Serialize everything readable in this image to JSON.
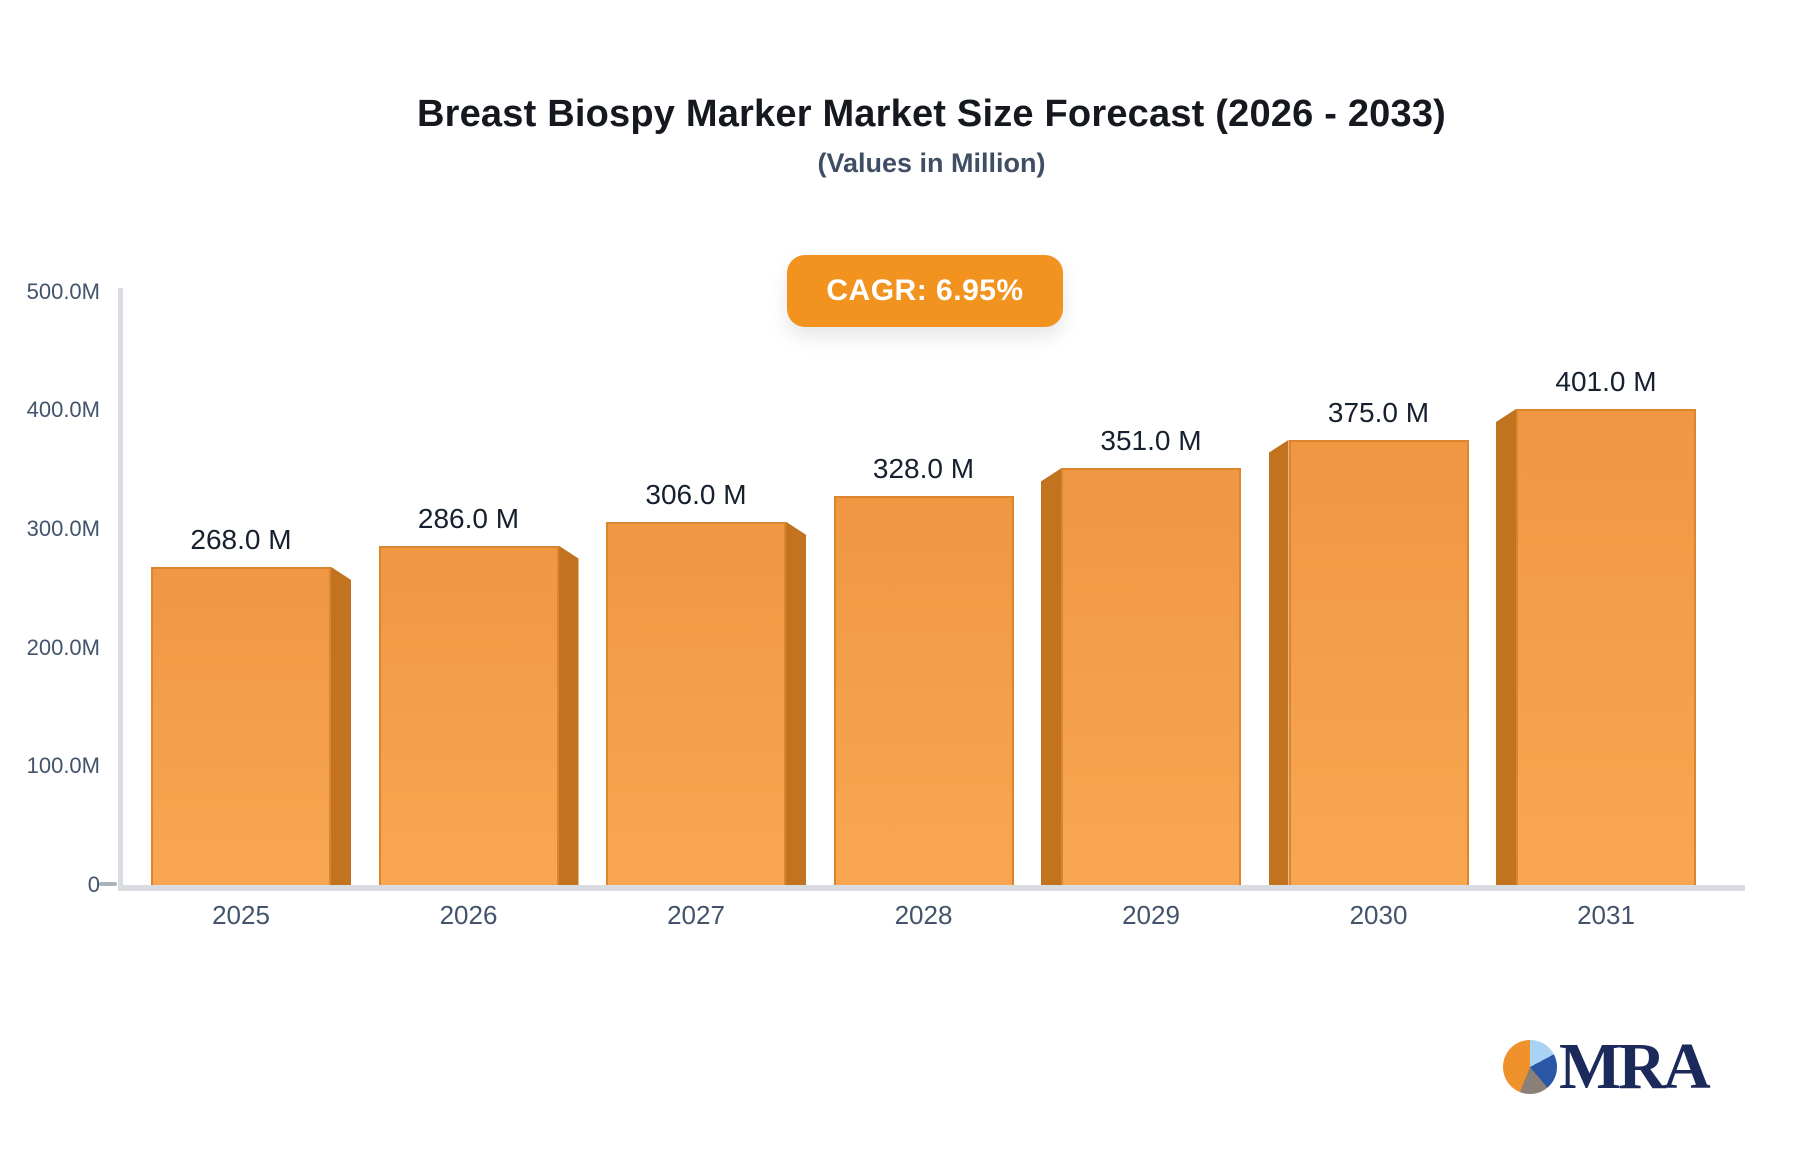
{
  "header": {
    "title": "Breast Biospy Marker Market Size Forecast (2026 - 2033)",
    "subtitle": "(Values in Million)",
    "cagr_badge": "CAGR: 6.95%"
  },
  "chart_data": {
    "type": "bar",
    "title": "Breast Biospy Marker Market Size Forecast (2026 - 2033)",
    "subtitle": "(Values in Million)",
    "categories": [
      "2025",
      "2026",
      "2027",
      "2028",
      "2029",
      "2030",
      "2031"
    ],
    "values": [
      268,
      286,
      306,
      328,
      351,
      375,
      401
    ],
    "bar_labels": [
      "268.0 M",
      "286.0 M",
      "306.0 M",
      "328.0 M",
      "351.0 M",
      "375.0 M",
      "401.0 M"
    ],
    "y_ticks": [
      {
        "value": 500,
        "label": "500.0M"
      },
      {
        "value": 400,
        "label": "400.0M"
      },
      {
        "value": 300,
        "label": "300.0M"
      },
      {
        "value": 200,
        "label": "200.0M"
      },
      {
        "value": 100,
        "label": "100.0M"
      },
      {
        "value": 0,
        "label": "0"
      }
    ],
    "ylim": [
      0,
      500
    ],
    "xlabel": "",
    "ylabel": "",
    "grid": false,
    "legend": false,
    "annotation": "CAGR: 6.95%",
    "colors": {
      "accent_orange": "#f2921f",
      "bar_face_top": "#ef9743",
      "bar_face_bottom": "#f8a750",
      "bar_border": "#db862f",
      "bar_side": "#c17320",
      "axis_line": "#d9dce1",
      "tick_text": "#43536b",
      "value_text": "#16202e",
      "title_text": "#15181e",
      "subtitle_text": "#3f4e63"
    }
  },
  "logo": {
    "text": "MRA",
    "icon": "pie-chart-icon",
    "navy": "#1b2a5a",
    "pie_colors": {
      "orange": "#f0922b",
      "light_blue": "#a9d3f5",
      "blue": "#2a57a5",
      "gray": "#8b8078"
    }
  }
}
